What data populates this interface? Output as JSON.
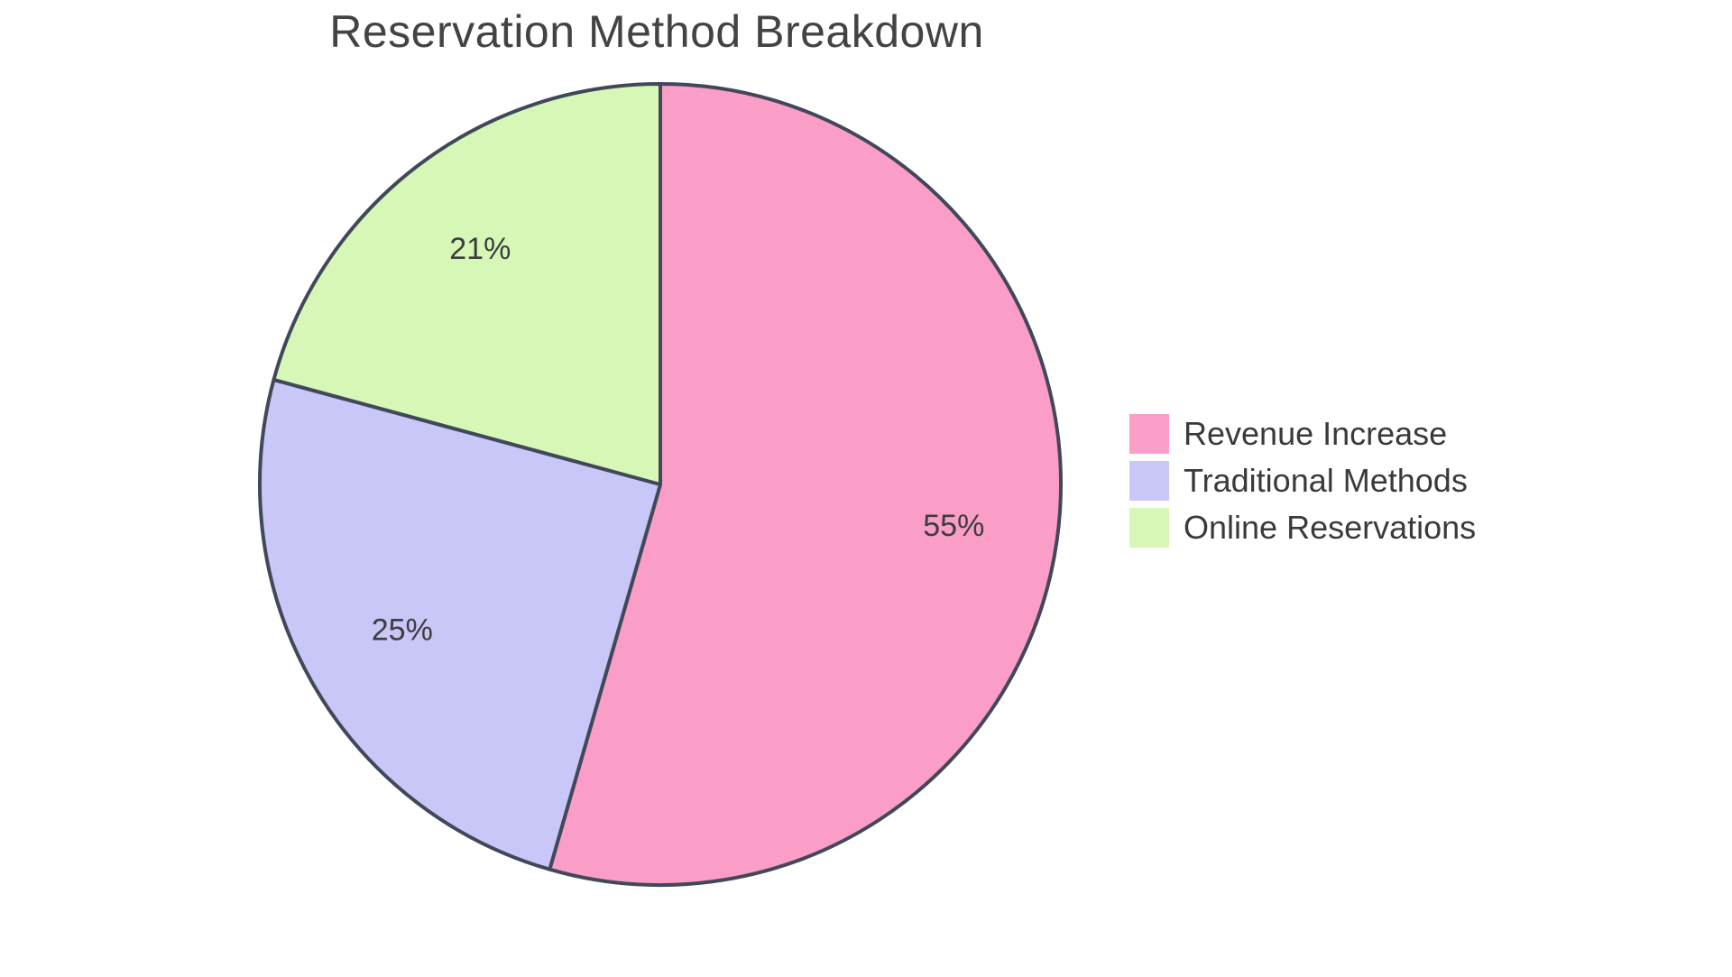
{
  "page": {
    "background_color": "#ffffff"
  },
  "chart_data": {
    "type": "pie",
    "title": "Reservation Method Breakdown",
    "labels": [
      "Revenue Increase",
      "Traditional Methods",
      "Online Reservations"
    ],
    "values": [
      55,
      25,
      21
    ],
    "value_labels": [
      "55%",
      "25%",
      "21%"
    ],
    "colors": [
      "#FA9EC8",
      "#C9C6F8",
      "#D6F7B6"
    ],
    "slice_border_color": "#414859",
    "percent_label_color": "#3d3d3d",
    "title_color": "#434343",
    "legend_text_color": "#3a3a3a",
    "legend_position": "right",
    "start_angle_deg": 0,
    "direction": "clockwise",
    "grid": false
  }
}
